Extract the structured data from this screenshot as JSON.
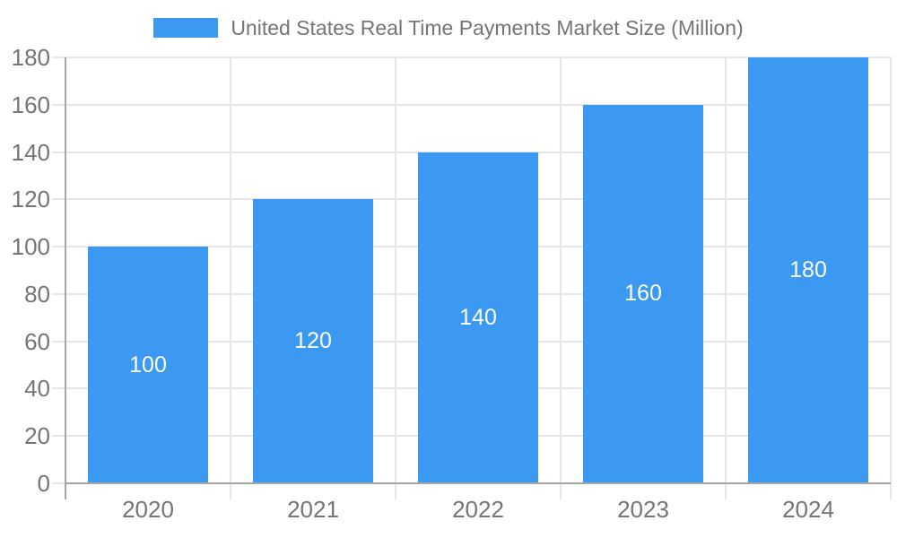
{
  "chart_data": {
    "type": "bar",
    "title": "United States Real Time Payments Market Size (Million)",
    "legend": {
      "position": "top",
      "entries": [
        "United States Real Time Payments Market Size (Million)"
      ]
    },
    "categories": [
      "2020",
      "2021",
      "2022",
      "2023",
      "2024"
    ],
    "series": [
      {
        "name": "United States Real Time Payments Market Size (Million)",
        "values": [
          100,
          120,
          140,
          160,
          180
        ]
      }
    ],
    "value_labels": [
      "100",
      "120",
      "140",
      "160",
      "180"
    ],
    "xlabel": "",
    "ylabel": "",
    "ylim": [
      0,
      180
    ],
    "ytick_step": 20,
    "yticks": [
      0,
      20,
      40,
      60,
      80,
      100,
      120,
      140,
      160,
      180
    ],
    "grid": true,
    "colors": {
      "bar": "#3b99f2",
      "value_label": "#ffffff",
      "gridline": "#e6e6e6",
      "axis_line": "#a6a6a6",
      "tick_label": "#757575",
      "background": "#ffffff"
    }
  }
}
